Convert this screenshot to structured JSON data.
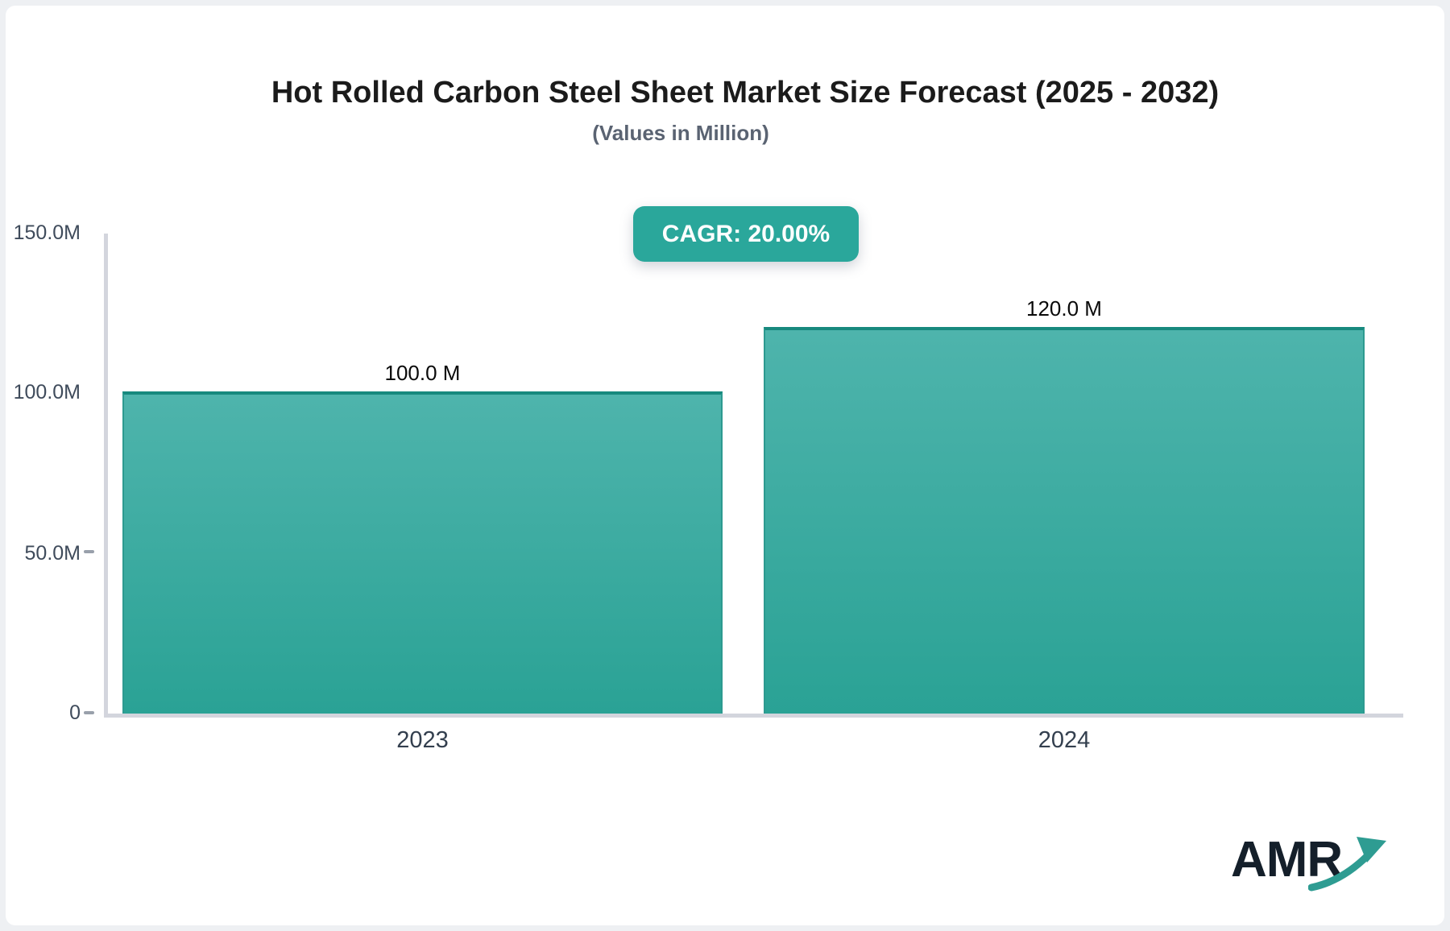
{
  "title": "Hot Rolled Carbon Steel Sheet Market Size Forecast (2025 - 2032)",
  "subtitle": "(Values in Million)",
  "badge": {
    "label": "CAGR: 20.00%",
    "bg_color": "#2aa79b",
    "text_color": "#ffffff"
  },
  "chart_data": {
    "type": "bar",
    "categories": [
      "2023",
      "2024"
    ],
    "values": [
      100.0,
      120.0
    ],
    "value_labels": [
      "100.0 M",
      "120.0 M"
    ],
    "title": "Hot Rolled Carbon Steel Sheet Market Size Forecast (2025 - 2032)",
    "subtitle": "(Values in Million)",
    "cagr": "20.00%",
    "unit": "Million",
    "xlabel": "",
    "ylabel": "",
    "ylim": [
      0,
      150
    ],
    "ytick_labels": [
      "150.0M",
      "100.0M",
      "50.0M",
      "0"
    ],
    "ytick_values": [
      150,
      100,
      50,
      0
    ],
    "grid": false,
    "legend": false,
    "bar_color_top": "#4eb4ac",
    "bar_color_bottom": "#2aa295",
    "bar_border_color": "#17897e"
  },
  "logo": {
    "text": "AMR",
    "arrow_icon": "growth-arrow-icon",
    "arrow_color": "#2e9c92"
  }
}
